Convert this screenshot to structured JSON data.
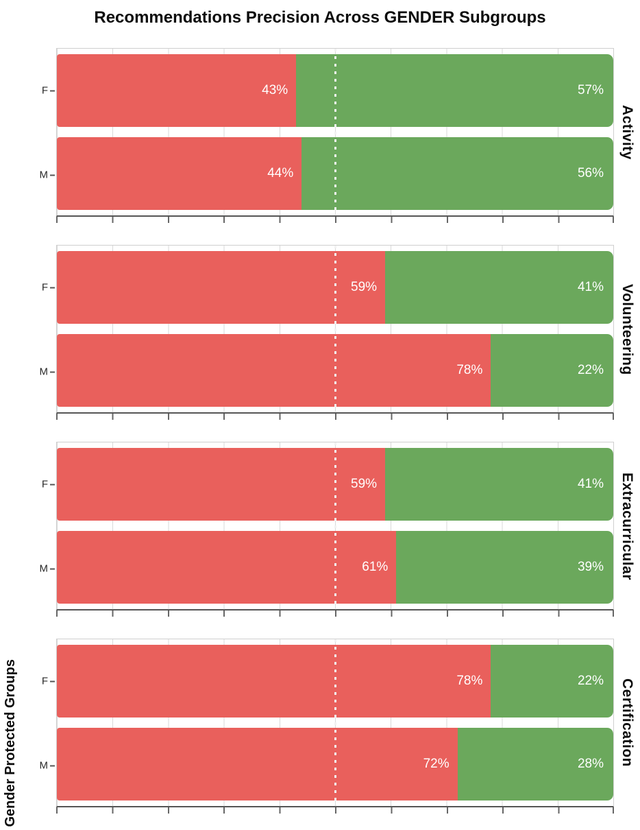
{
  "chart_data": {
    "type": "bar",
    "orientation": "horizontal",
    "stacked": true,
    "title": "Recommendations Precision Across GENDER Subgroups",
    "ylabel": "Gender Protected Groups",
    "xlabel": "",
    "xlim": [
      0,
      100
    ],
    "unit": "%",
    "x_tick_interval_pct": 10,
    "x_tick_labels_visible": false,
    "legend": "none",
    "grid": "vertical gridlines every 10%",
    "reference_line_pct": 50,
    "categories": [
      "F",
      "M"
    ],
    "series_names": [
      "red",
      "green"
    ],
    "colors": {
      "red_segment": "#E9605C",
      "green_segment": "#6BA85C",
      "reference_line": "#F2F2F2",
      "gridline": "#D9D9D9",
      "axis_line": "#555555",
      "panel_border": "#CFCFCF",
      "bar_label_text": "#FFFFFF",
      "title_text": "#0D0D0D"
    },
    "facets": [
      {
        "label": "Activity",
        "rows": [
          {
            "category": "F",
            "red": 43,
            "green": 57,
            "red_label": "43%",
            "green_label": "57%"
          },
          {
            "category": "M",
            "red": 44,
            "green": 56,
            "red_label": "44%",
            "green_label": "56%"
          }
        ]
      },
      {
        "label": "Volunteering",
        "rows": [
          {
            "category": "F",
            "red": 59,
            "green": 41,
            "red_label": "59%",
            "green_label": "41%"
          },
          {
            "category": "M",
            "red": 78,
            "green": 22,
            "red_label": "78%",
            "green_label": "22%"
          }
        ]
      },
      {
        "label": "Extracurricular",
        "rows": [
          {
            "category": "F",
            "red": 59,
            "green": 41,
            "red_label": "59%",
            "green_label": "41%"
          },
          {
            "category": "M",
            "red": 61,
            "green": 39,
            "red_label": "61%",
            "green_label": "39%"
          }
        ]
      },
      {
        "label": "Certification",
        "rows": [
          {
            "category": "F",
            "red": 78,
            "green": 22,
            "red_label": "78%",
            "green_label": "22%"
          },
          {
            "category": "M",
            "red": 72,
            "green": 28,
            "red_label": "72%",
            "green_label": "28%"
          }
        ]
      }
    ]
  }
}
